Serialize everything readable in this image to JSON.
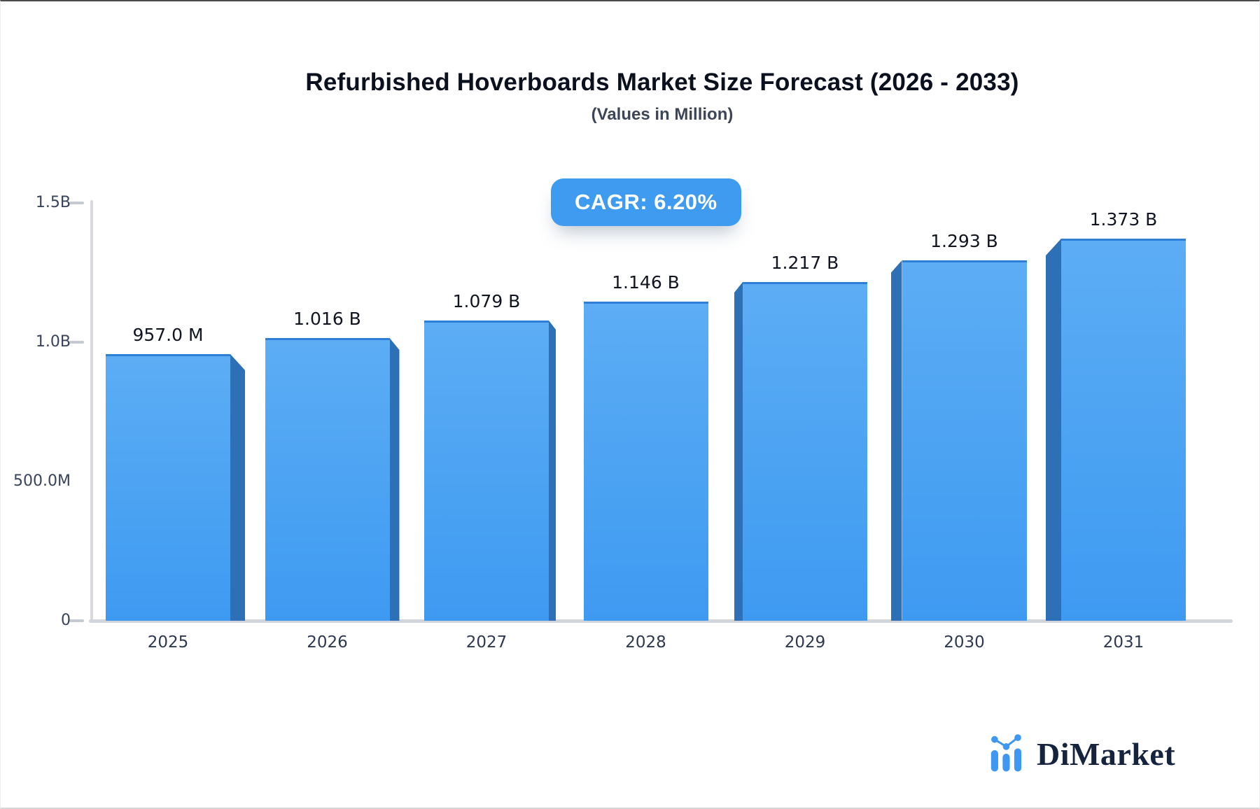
{
  "header": {
    "title": "Refurbished Hoverboards Market Size Forecast (2026 - 2033)",
    "subtitle": "(Values in Million)"
  },
  "badge": {
    "label": "CAGR: 6.20%",
    "color": "#3f9bf0"
  },
  "yaxis": {
    "tick_labels": [
      "1.5B",
      "1.0B",
      "500.0M",
      "0"
    ]
  },
  "chart_data": {
    "type": "bar",
    "title": "Refurbished Hoverboards Market Size Forecast (2026 - 2033)",
    "subtitle": "(Values in Million)",
    "cagr_label": "CAGR: 6.20%",
    "categories": [
      "2025",
      "2026",
      "2027",
      "2028",
      "2029",
      "2030",
      "2031"
    ],
    "values_millions": [
      957.0,
      1016,
      1079,
      1146,
      1217,
      1293,
      1373
    ],
    "value_labels": [
      "957.0 M",
      "1.016 B",
      "1.079 B",
      "1.146 B",
      "1.217 B",
      "1.293 B",
      "1.373 B"
    ],
    "ylabel": "",
    "xlabel": "",
    "ylim": [
      0,
      1500
    ],
    "ytick_labels": [
      "0",
      "500.0M",
      "1.0B",
      "1.5B"
    ],
    "grid": false,
    "legend": false,
    "colors": {
      "bar_top": "#5cadf4",
      "bar_bottom": "#3e9af1",
      "bar_side": "#2e70b5",
      "bar_edge": "#2f7ed8",
      "axis": "#d6d9dd",
      "accent": "#3f9bf0"
    }
  },
  "logo": {
    "icon": "bar-chart-icon",
    "text": "DiMarket"
  }
}
